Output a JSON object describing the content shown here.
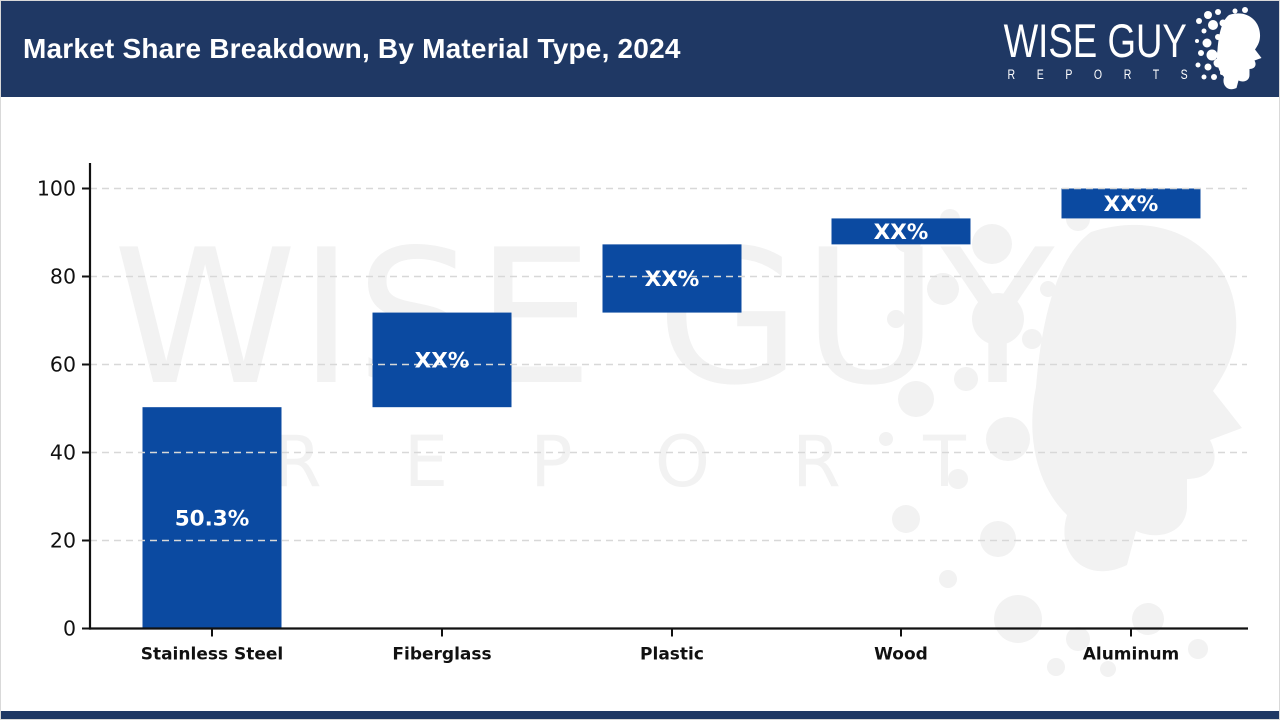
{
  "header": {
    "title": "Market Share Breakdown, By Material Type, 2024",
    "bg_color": "#1f3864",
    "logo": {
      "line1": "WISE GUY",
      "line2": "R E P O R T S"
    }
  },
  "watermark": {
    "line1": "WISE GUY",
    "line2": "R E P O R T S"
  },
  "chart_data": {
    "type": "bar",
    "subtype": "waterfall-floating-bars",
    "title": "",
    "xlabel": "",
    "ylabel": "",
    "categories": [
      "Stainless Steel",
      "Fiberglass",
      "Plastic",
      "Wood",
      "Aluminum"
    ],
    "segments": [
      {
        "category": "Stainless Steel",
        "start": 0,
        "end": 50.3,
        "label": "50.3%"
      },
      {
        "category": "Fiberglass",
        "start": 50.3,
        "end": 71.8,
        "label": "XX%"
      },
      {
        "category": "Plastic",
        "start": 71.8,
        "end": 87.3,
        "label": "XX%"
      },
      {
        "category": "Wood",
        "start": 87.3,
        "end": 93.2,
        "label": "XX%"
      },
      {
        "category": "Aluminum",
        "start": 93.2,
        "end": 100,
        "label": "XX%"
      }
    ],
    "yticks": [
      0,
      20,
      40,
      60,
      80,
      100
    ],
    "ylim": [
      0,
      105
    ],
    "grid": "horizontal-dashed",
    "legend": "none",
    "bar_color": "#0b4aa1",
    "bar_label_color": "#ffffff",
    "grid_color": "#d8d8d8",
    "axis_color": "#111111",
    "tick_label_color": "#111111"
  }
}
